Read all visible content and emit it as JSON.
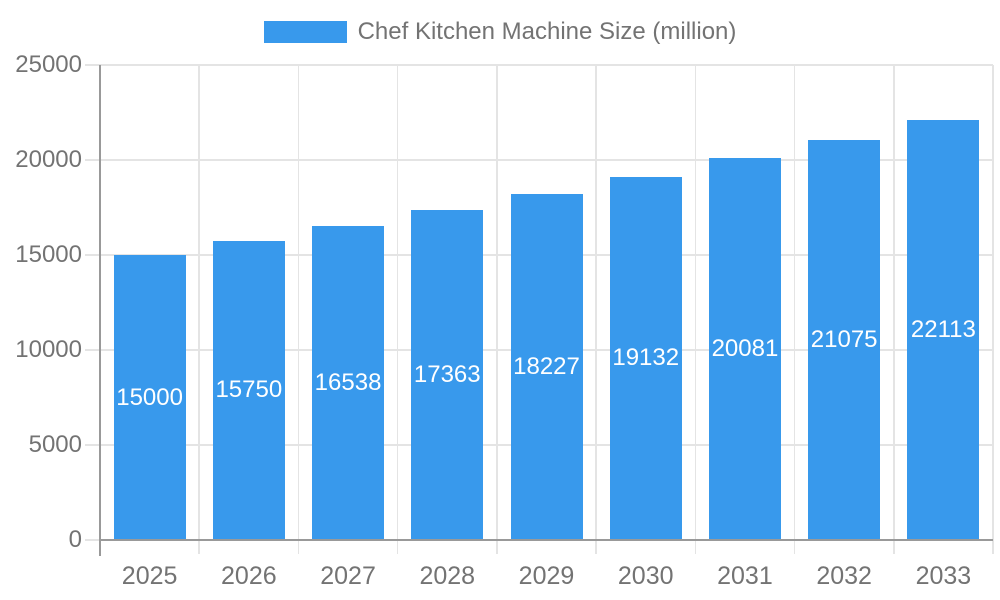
{
  "chart_data": {
    "type": "bar",
    "title": "Chef Kitchen Machine Size (million)",
    "categories": [
      "2025",
      "2026",
      "2027",
      "2028",
      "2029",
      "2030",
      "2031",
      "2032",
      "2033"
    ],
    "values": [
      15000,
      15750,
      16538,
      17363,
      18227,
      19132,
      20081,
      21075,
      22113
    ],
    "xlabel": "",
    "ylabel": "",
    "ylim": [
      0,
      25000
    ],
    "yticks": [
      0,
      5000,
      10000,
      15000,
      20000,
      25000
    ],
    "grid": true,
    "value_labels": "inside-center",
    "legend_position": "top-center",
    "colors": {
      "bar": "#3899EC",
      "value_text": "#FFFFFF",
      "axis_line": "#999999",
      "gridline": "#E4E4E4",
      "tick_label": "#737373",
      "background": "#FFFFFF"
    }
  }
}
